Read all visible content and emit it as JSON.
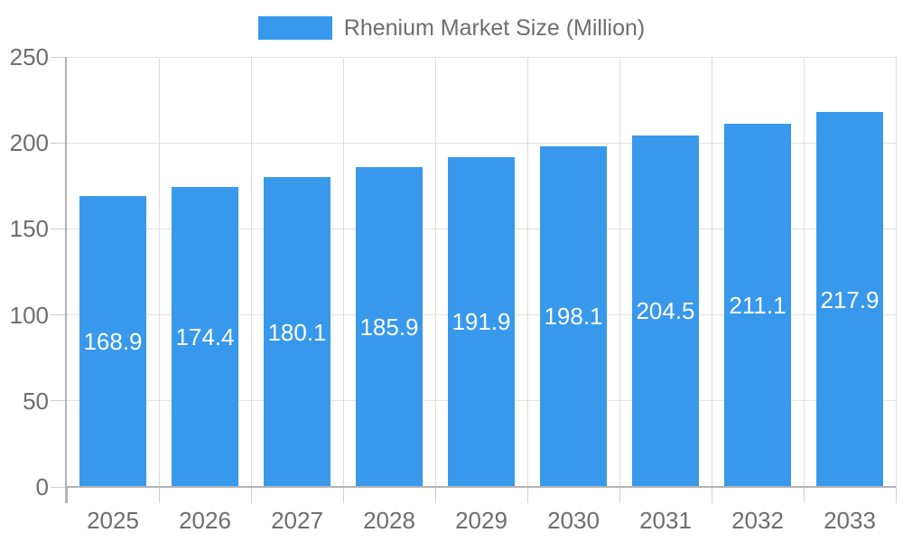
{
  "legend": {
    "label": "Rhenium Market Size (Million)"
  },
  "chart_data": {
    "type": "bar",
    "title": "",
    "xlabel": "",
    "ylabel": "",
    "categories": [
      "2025",
      "2026",
      "2027",
      "2028",
      "2029",
      "2030",
      "2031",
      "2032",
      "2033"
    ],
    "series": [
      {
        "name": "Rhenium Market Size (Million)",
        "values": [
          168.9,
          174.4,
          180.1,
          185.9,
          191.9,
          198.1,
          204.5,
          211.1,
          217.9
        ],
        "value_labels": [
          "168.9",
          "174.4",
          "180.1",
          "185.9",
          "191.9",
          "198.1",
          "204.5",
          "211.1",
          "217.9"
        ]
      }
    ],
    "ylim": [
      0,
      250
    ],
    "yticks": [
      0,
      50,
      100,
      150,
      200,
      250
    ],
    "ytick_labels": [
      "0",
      "50",
      "100",
      "150",
      "200",
      "250"
    ],
    "grid": true,
    "legend_position": "top-center",
    "colors": {
      "bar": "#3899EC",
      "bar_label": "#FFFFFF",
      "axis_text": "#6E6E6E",
      "legend_text": "#6E6E6E",
      "grid_line": "#E4E4E4",
      "grid_line_vertical": "#DDDDDD",
      "axis_line": "#B3B3B3",
      "tick": "#CFCFCF",
      "background": "#FFFFFF"
    }
  }
}
